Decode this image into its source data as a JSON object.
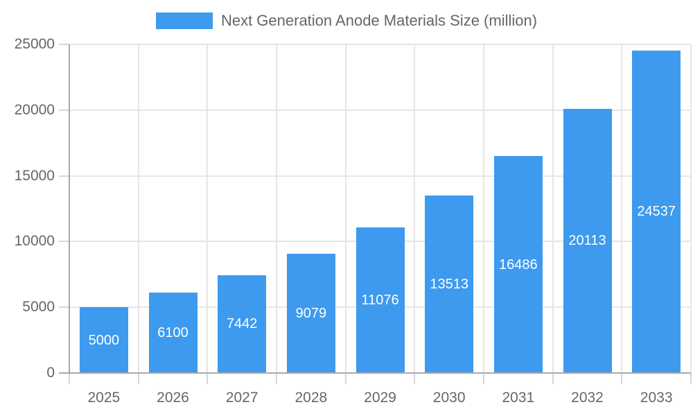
{
  "chart_data": {
    "type": "bar",
    "legend": "Next Generation Anode Materials Size (million)",
    "legend_position": "top",
    "categories": [
      "2025",
      "2026",
      "2027",
      "2028",
      "2029",
      "2030",
      "2031",
      "2032",
      "2033"
    ],
    "values": [
      5000,
      6100,
      7442,
      9079,
      11076,
      13513,
      16486,
      20113,
      24537
    ],
    "xlabel": "",
    "ylabel": "",
    "ylim": [
      0,
      25000
    ],
    "yticks": [
      0,
      5000,
      10000,
      15000,
      20000,
      25000
    ],
    "grid": true,
    "bar_color": "#3d9aee",
    "value_label_color": "#ffffff",
    "axis_color": "#a9a9a9",
    "grid_color": "#e6e6e6",
    "tick_color": "#d6d6d6",
    "text_color": "#666666"
  }
}
